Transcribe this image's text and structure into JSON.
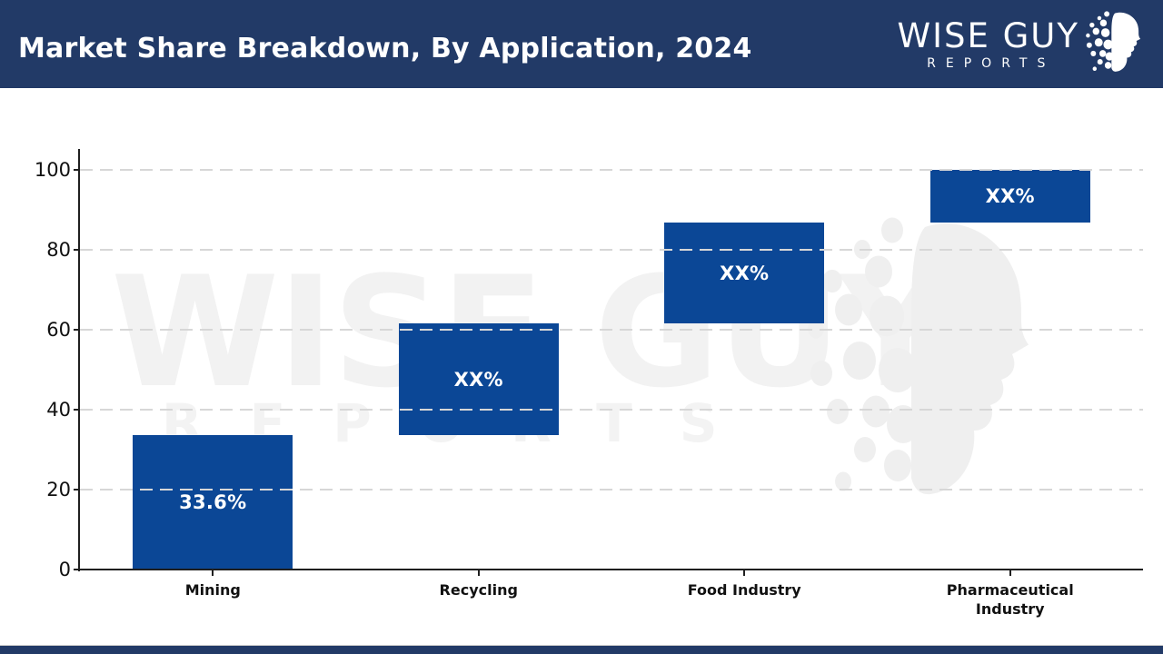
{
  "header": {
    "title": "Market Share Breakdown, By Application, 2024",
    "background_color": "#223a67",
    "logo": {
      "line1": "WISE GUY",
      "line2": "REPORTS"
    }
  },
  "watermark": {
    "line1": "WISE GUY",
    "line2": "REPORTS"
  },
  "footer": {
    "background_color": "#223a67"
  },
  "chart_data": {
    "type": "bar",
    "subtype": "floating-waterfall",
    "title": "Market Share Breakdown, By Application, 2024",
    "categories": [
      "Mining",
      "Recycling",
      "Food Industry",
      "Pharmaceutical Industry"
    ],
    "segments": [
      {
        "category": "Mining",
        "start": 0,
        "end": 33.6,
        "value": 33.6,
        "label": "33.6%"
      },
      {
        "category": "Recycling",
        "start": 33.6,
        "end": 61.5,
        "value": 27.9,
        "label": "XX%"
      },
      {
        "category": "Food Industry",
        "start": 61.5,
        "end": 86.8,
        "value": 25.3,
        "label": "XX%"
      },
      {
        "category": "Pharmaceutical Industry",
        "start": 86.8,
        "end": 100,
        "value": 13.2,
        "label": "XX%"
      }
    ],
    "yticks": [
      0,
      20,
      40,
      60,
      80,
      100
    ],
    "ylim": [
      0,
      105
    ],
    "xlabel": "",
    "ylabel": "",
    "grid": "horizontal-dashed-over-bars",
    "legend": "none",
    "bar_color": "#0b4796",
    "bar_label_color": "#ffffff",
    "gridline_color": "#d7d7d7",
    "axis_color": "#1f1f1f"
  }
}
